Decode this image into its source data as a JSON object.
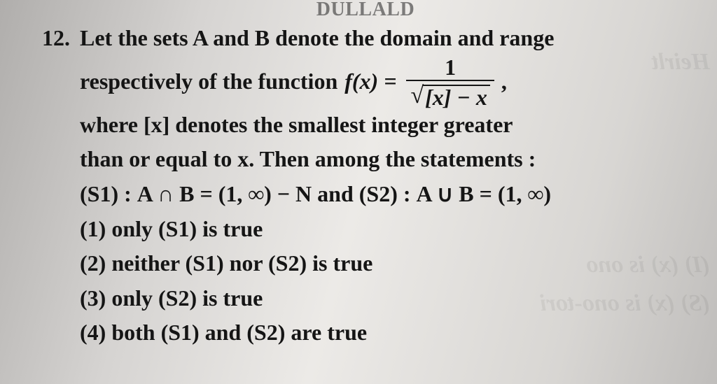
{
  "colors": {
    "text": "#151515",
    "background_gradient": [
      "#b0aeac",
      "#d6d4d2",
      "#eceae7",
      "#d8d6d3",
      "#bfbdbb"
    ],
    "ghost": "rgba(0,0,0,0.06)",
    "rule": "#151515"
  },
  "typography": {
    "family": "Georgia, 'Times New Roman', serif",
    "body_fontsize_pt": 24,
    "body_fontweight": 700,
    "line_height": 1.55
  },
  "top_cut_text": "DULLALD",
  "ghost_text": {
    "g1": "Heirlt",
    "g2": "(I) (x) is ono",
    "g3": "(S) (x) is ono-tori"
  },
  "question": {
    "number": "12.",
    "line1": "Let the sets A and B denote the domain and range",
    "line2_prefix": "respectively of the function",
    "func_lhs": "f(x) =",
    "frac_num": "1",
    "frac_den_before": "[x] − x",
    "line2_suffix": ",",
    "line3": "where [x] denotes the smallest integer greater",
    "line4": "than or equal to x. Then among the statements :"
  },
  "statements": {
    "s1_label": "(S1) :",
    "s1_body_a": "A ∩ B = (1, ∞) − N",
    "conj": " and ",
    "s2_label": "(S2) :",
    "s2_body": "A ∪ B = (1, ∞)"
  },
  "options": {
    "o1": "(1) only (S1) is true",
    "o2": "(2) neither (S1) nor (S2) is true",
    "o3": "(3) only (S2) is true",
    "o4": "(4) both (S1) and (S2) are true"
  }
}
